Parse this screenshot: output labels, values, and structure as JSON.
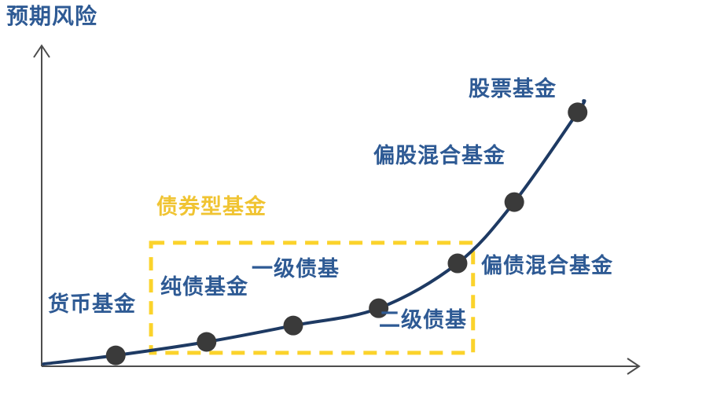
{
  "title": "预期风险",
  "colors": {
    "label_blue": "#2E5A94",
    "label_gold": "#F0C433",
    "curve_navy": "#1E3A63",
    "dot_dark": "#3A3A3A",
    "axis_gray": "#4D4D4D",
    "box_yellow": "#FBD32B",
    "background": "#FFFFFF"
  },
  "chart_data": {
    "type": "line",
    "title": "预期风险",
    "ylabel": "预期风险",
    "xlabel": "",
    "x_range": [
      0,
      100
    ],
    "y_range": [
      0,
      100
    ],
    "grid": false,
    "legend": false,
    "description": "Conceptual expected-risk curve ordering fund types from low to high risk",
    "curve": {
      "name": "risk-curve",
      "start": {
        "x": 0.3,
        "y": 0.7
      },
      "end": {
        "x": 90.7,
        "y": 82.8
      }
    },
    "points": [
      {
        "label": "货币基金",
        "x": 12.4,
        "y": 3.4
      },
      {
        "label": "纯债基金",
        "x": 27.6,
        "y": 7.6
      },
      {
        "label": "一级债基",
        "x": 42.1,
        "y": 12.7
      },
      {
        "label": "二级债基",
        "x": 56.4,
        "y": 18.1
      },
      {
        "label": "偏债混合基金",
        "x": 69.6,
        "y": 32.1
      },
      {
        "label": "偏股混合基金",
        "x": 79.1,
        "y": 51.2
      },
      {
        "label": "股票基金",
        "x": 89.7,
        "y": 79.2
      }
    ],
    "group_box": {
      "label": "债券型基金",
      "members": [
        "纯债基金",
        "一级债基",
        "二级债基"
      ],
      "x0": 18.3,
      "x1": 72.2,
      "y0": 4.2,
      "y1": 38.5
    }
  }
}
